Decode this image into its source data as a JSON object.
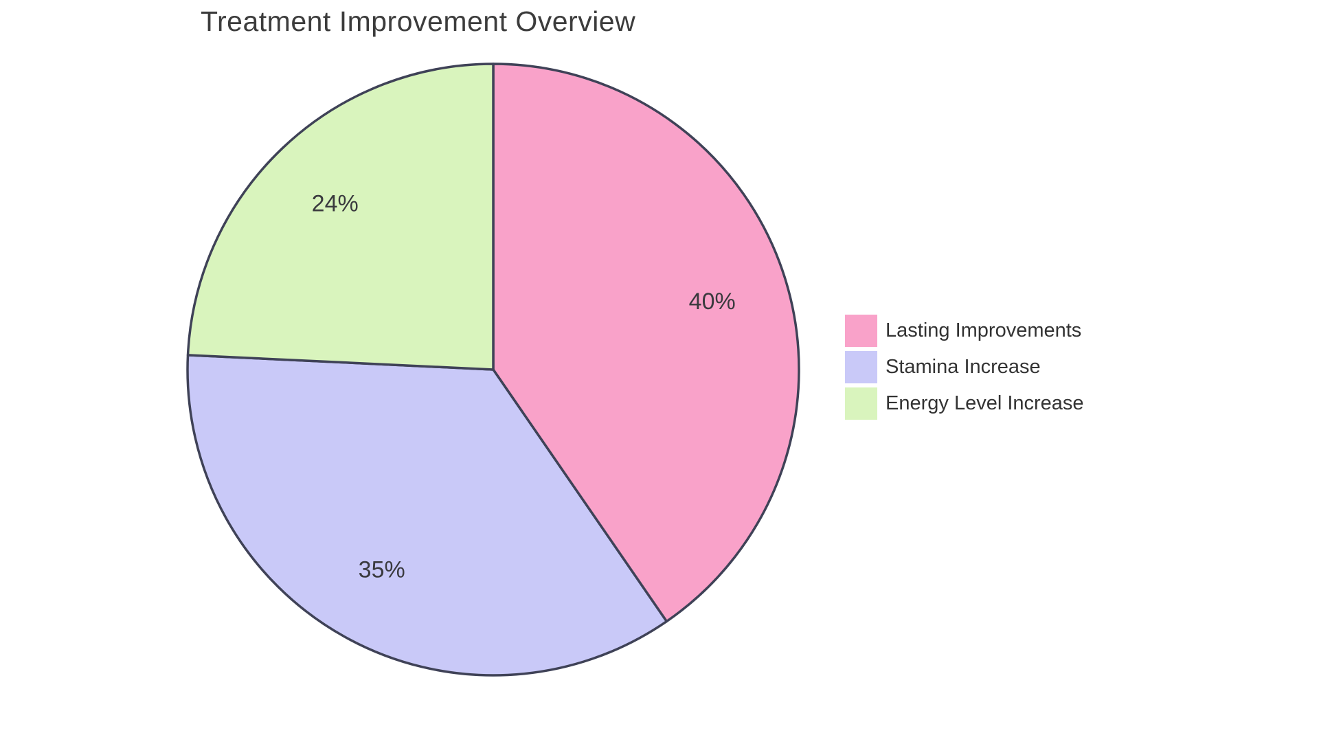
{
  "title": "Treatment Improvement Overview",
  "chart_data": {
    "type": "pie",
    "title": "Treatment Improvement Overview",
    "categories": [
      "Lasting Improvements",
      "Stamina Increase",
      "Energy Level Increase"
    ],
    "values": [
      40,
      35,
      24
    ],
    "slice_labels": [
      "40%",
      "35%",
      "24%"
    ],
    "colors": [
      "#F9A2C9",
      "#C9C9F8",
      "#D9F4BD"
    ],
    "stroke_color": "#3F4257",
    "start_angle_deg": 0,
    "direction": "clockwise",
    "legend_position": "right"
  },
  "legend": {
    "items": [
      {
        "label": "Lasting Improvements",
        "color": "#F9A2C9"
      },
      {
        "label": "Stamina Increase",
        "color": "#C9C9F8"
      },
      {
        "label": "Energy Level Increase",
        "color": "#D9F4BD"
      }
    ]
  }
}
